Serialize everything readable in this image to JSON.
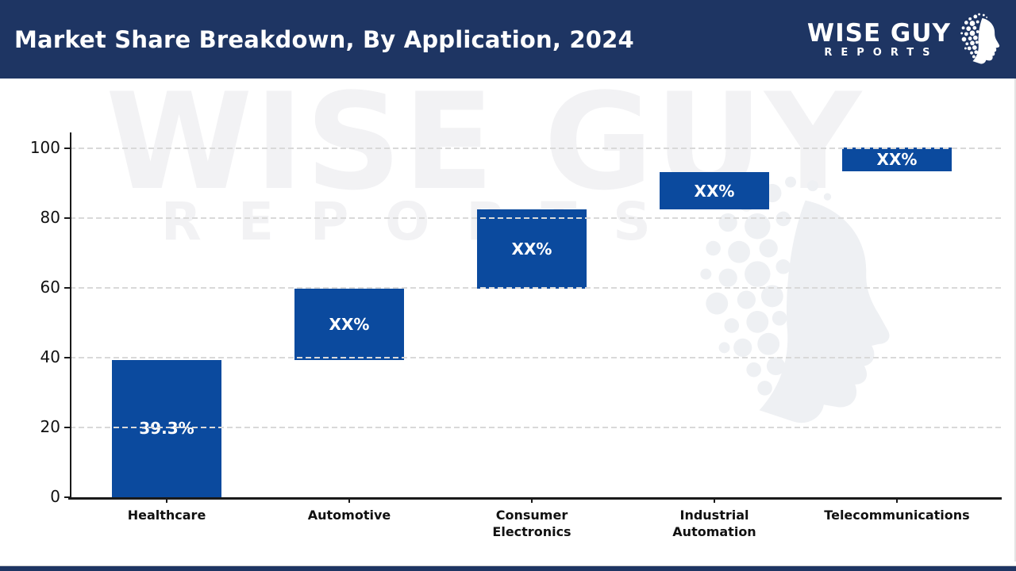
{
  "header": {
    "title": "Market Share Breakdown, By Application, 2024",
    "bg_color": "#1e3563",
    "text_color": "#ffffff"
  },
  "logo": {
    "line1": "WISE GUY",
    "line2": "REPORTS"
  },
  "watermark": {
    "line1": "WISE GUY",
    "line2": "REPORTS"
  },
  "chart_data": {
    "type": "bar",
    "subtype": "waterfall",
    "title": "Market Share Breakdown, By Application, 2024",
    "categories": [
      "Healthcare",
      "Automotive",
      "Consumer\nElectronics",
      "Industrial\nAutomation",
      "Telecommunications"
    ],
    "segments": [
      {
        "category": "Healthcare",
        "start": 0,
        "end": 39.3,
        "label": "39.3%"
      },
      {
        "category": "Automotive",
        "start": 39.3,
        "end": 59.8,
        "label": "XX%"
      },
      {
        "category": "Consumer Electronics",
        "start": 59.8,
        "end": 82.3,
        "label": "XX%"
      },
      {
        "category": "Industrial Automation",
        "start": 82.3,
        "end": 93.0,
        "label": "XX%"
      },
      {
        "category": "Telecommunications",
        "start": 93.2,
        "end": 100.2,
        "label": "XX%"
      }
    ],
    "bar_color": "#0b4a9e",
    "bar_label_color": "#ffffff",
    "yticks": [
      0,
      20,
      40,
      60,
      80,
      100
    ],
    "ylim": [
      0,
      104.5
    ],
    "xlabel": "",
    "ylabel": "",
    "grid": "horizontal-dashed",
    "grid_color": "#d9d9d9",
    "legend": null
  }
}
